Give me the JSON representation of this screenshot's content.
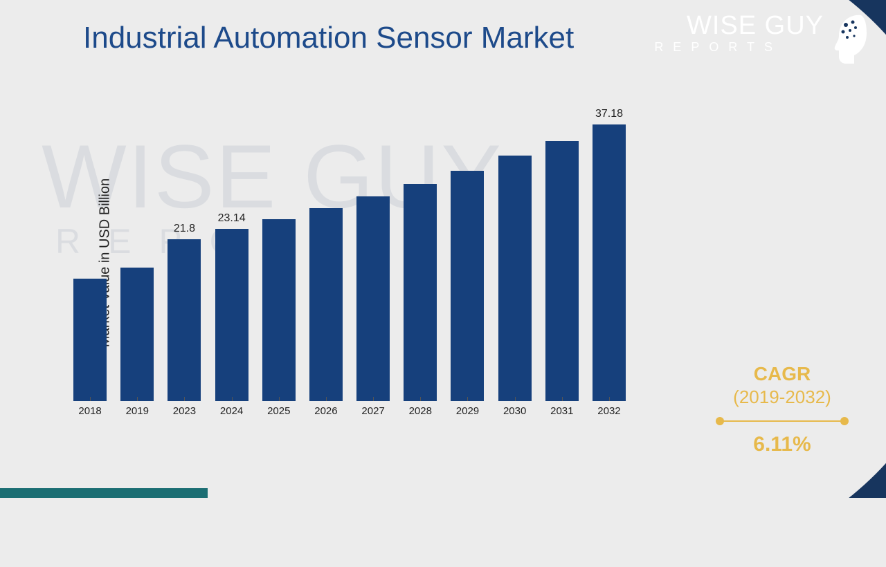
{
  "title": "Industrial Automation Sensor Market",
  "logo": {
    "main": "WISE GUY",
    "sub": "REPORTS"
  },
  "watermark": {
    "main": "WISE GUY",
    "sub": "REPORTS"
  },
  "cagr": {
    "title": "CAGR",
    "range": "(2019-2032)",
    "value": "6.11%",
    "text_color": "#e7b94b"
  },
  "chart": {
    "type": "bar",
    "y_label": "Market Value in USD Billion",
    "bar_color": "#16407c",
    "label_color": "#222222",
    "label_fontsize": 16,
    "ymax": 40,
    "categories": [
      "2018",
      "2019",
      "2023",
      "2024",
      "2025",
      "2026",
      "2027",
      "2028",
      "2029",
      "2030",
      "2031",
      "2032"
    ],
    "values": [
      16.5,
      18.0,
      21.8,
      23.14,
      24.5,
      26.0,
      27.5,
      29.2,
      31.0,
      33.0,
      35.0,
      37.18
    ],
    "value_labels": [
      "",
      "",
      "21.8",
      "23.14",
      "",
      "",
      "",
      "",
      "",
      "",
      "",
      "37.18"
    ]
  },
  "colors": {
    "page_bg": "#ececec",
    "panel_bg": "#17355e",
    "title_color": "#1d4a8a",
    "strip_color": "#1b6e73"
  }
}
